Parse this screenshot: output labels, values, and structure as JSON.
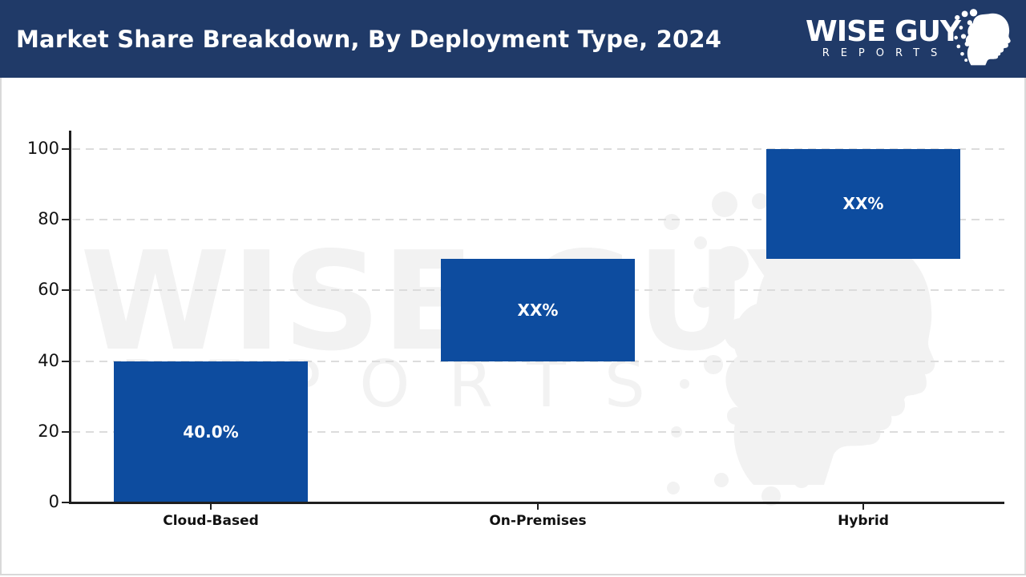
{
  "header": {
    "title": "Market Share Breakdown, By Deployment Type, 2024",
    "logo": {
      "line1": "WISE GUY",
      "line2": "REPORTS"
    }
  },
  "watermark": {
    "line1": "WISE GUY",
    "line2": "REPORTS"
  },
  "colors": {
    "header_bg": "#203a68",
    "bar": "#0d4c9f",
    "bar_label": "#ffffff",
    "axis": "#1f1f1f",
    "grid": "#dcdcdc",
    "tick_label": "#111111",
    "watermark": "#f2f2f2",
    "frame_border": "#d9d9d9"
  },
  "chart_data": {
    "type": "bar",
    "subtype": "floating-waterfall",
    "title": "Market Share Breakdown, By Deployment Type, 2024",
    "categories": [
      "Cloud-Based",
      "On-Premises",
      "Hybrid"
    ],
    "segments": [
      {
        "category": "Cloud-Based",
        "start": 0,
        "end": 40,
        "label": "40.0%"
      },
      {
        "category": "On-Premises",
        "start": 40,
        "end": 69,
        "label": "XX%"
      },
      {
        "category": "Hybrid",
        "start": 69,
        "end": 100,
        "label": "XX%"
      }
    ],
    "ylim": [
      0,
      100
    ],
    "yticks": [
      0,
      20,
      40,
      60,
      80,
      100
    ],
    "xlabel": "",
    "ylabel": "",
    "grid": "horizontal-dashed",
    "legend": "none"
  }
}
